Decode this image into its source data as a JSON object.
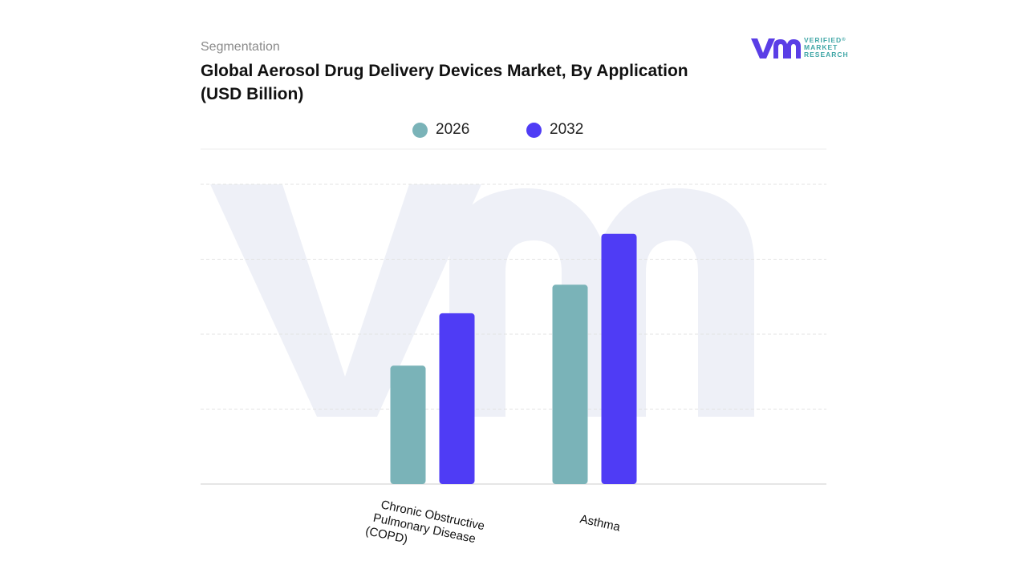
{
  "header": {
    "segment_label": "Segmentation",
    "title_line1": "Global Aerosol Drug Delivery Devices Market, By Application",
    "title_line2": "(USD Billion)"
  },
  "logo": {
    "mark": "vmr",
    "text_line1": "VERIFIED",
    "text_line2": "MARKET",
    "text_line3": "RESEARCH",
    "registered": "®"
  },
  "colors": {
    "series_2026": "#7ab3b8",
    "series_2032": "#4f3cf5",
    "grid": "#e3e3e3",
    "watermark": "#eef0f7",
    "logo_purple": "#5a3ee6",
    "logo_teal": "#3fa6a6"
  },
  "chart_data": {
    "type": "bar",
    "title": "Global Aerosol Drug Delivery Devices Market, By Application (USD Billion)",
    "categories": [
      "Chronic Obstructive Pulmonary Disease (COPD)",
      "Asthma"
    ],
    "category_label_lines": [
      [
        "Chronic Obstructive",
        "Pulmonary Disease",
        "(COPD)"
      ],
      [
        "Asthma"
      ]
    ],
    "series": [
      {
        "name": "2026",
        "color": "#7ab3b8",
        "values": [
          1.58,
          2.66
        ]
      },
      {
        "name": "2032",
        "color": "#4f3cf5",
        "values": [
          2.28,
          3.34
        ]
      }
    ],
    "ylim": [
      0,
      4.0
    ],
    "xlabel": "",
    "ylabel": "",
    "grid": true,
    "legend_position": "top-center",
    "tick_labels_visible": false
  }
}
